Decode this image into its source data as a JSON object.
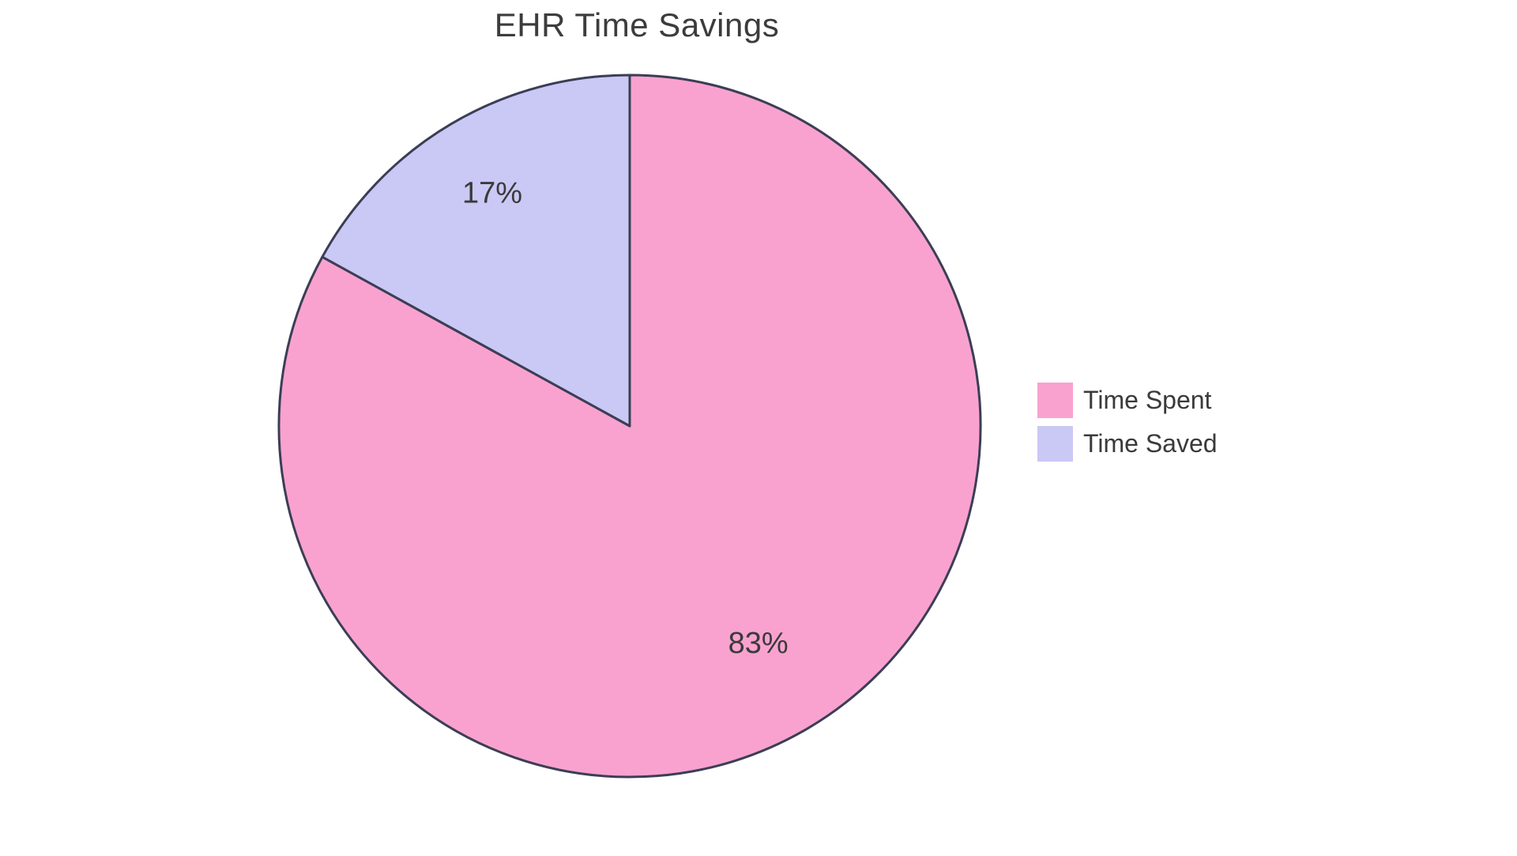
{
  "chart_data": {
    "type": "pie",
    "title": "EHR Time Savings",
    "labels": [
      "Time Spent",
      "Time Saved"
    ],
    "values": [
      83,
      17
    ],
    "value_labels": [
      "83%",
      "17%"
    ],
    "colors": [
      "#F9A2CF",
      "#CAC8F5"
    ],
    "border_color": "#3B3E55",
    "text_color": "#3A3A3A",
    "legend_position": "right",
    "start_angle_deg": -90,
    "direction": "clockwise",
    "grid": false
  }
}
